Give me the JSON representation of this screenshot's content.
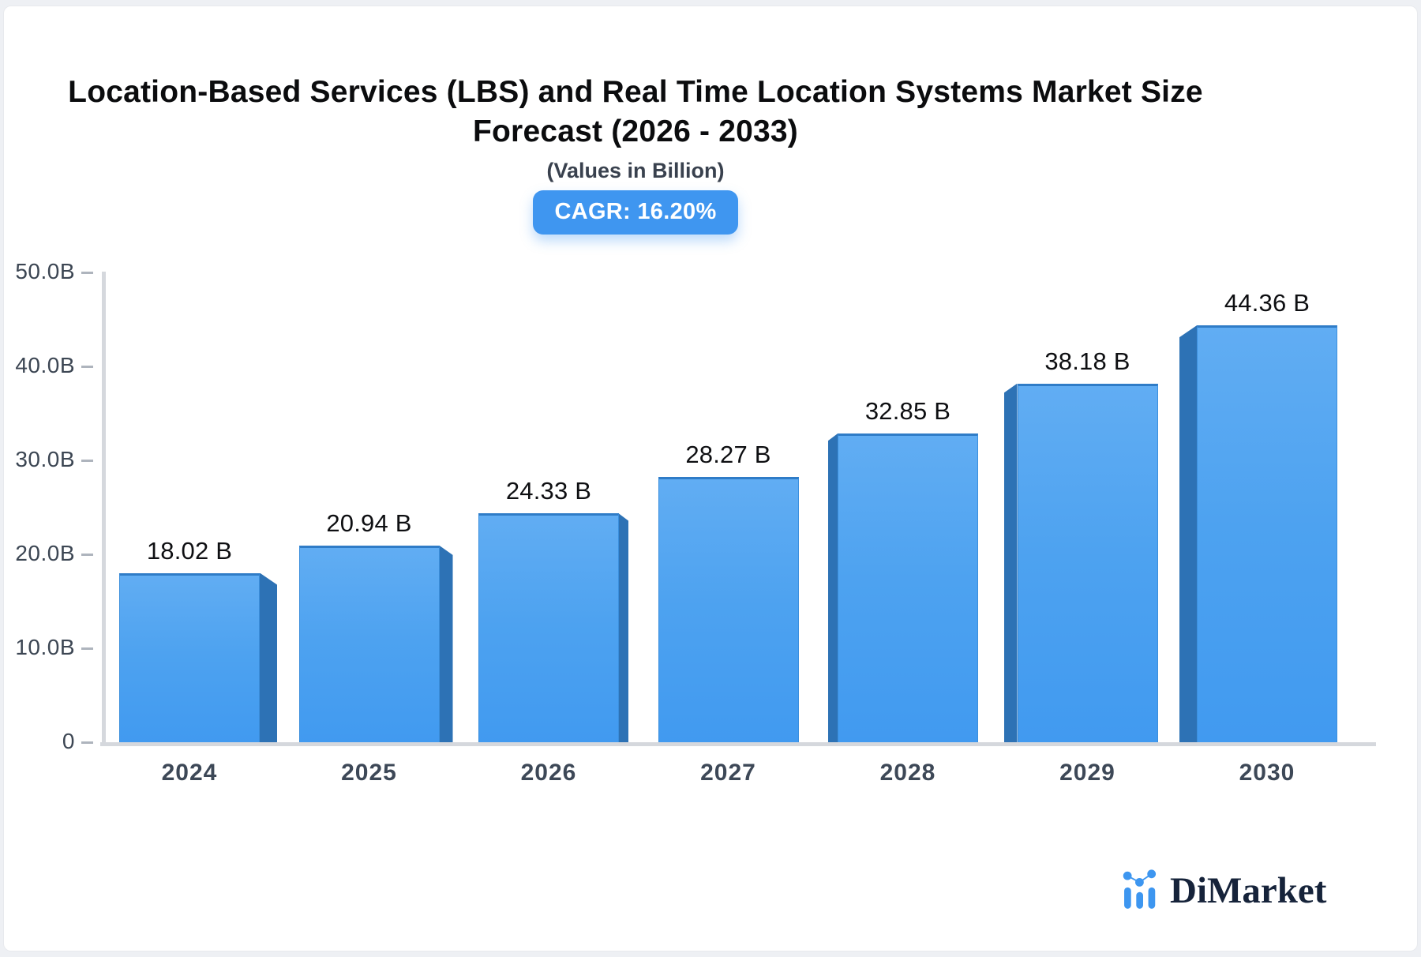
{
  "header": {
    "title_line1": "Location-Based Services (LBS) and Real Time Location Systems Market Size",
    "title_line2": "Forecast (2026 - 2033)",
    "subtitle": "(Values in Billion)",
    "cagr_badge": "CAGR: 16.20%"
  },
  "chart_data": {
    "type": "bar",
    "title": "Location-Based Services (LBS) and Real Time Location Systems Market Size Forecast (2026 - 2033)",
    "subtitle": "(Values in Billion)",
    "cagr_percent": 16.2,
    "categories": [
      "2024",
      "2025",
      "2026",
      "2027",
      "2028",
      "2029",
      "2030"
    ],
    "values": [
      18.02,
      20.94,
      24.33,
      28.27,
      32.85,
      38.18,
      44.36
    ],
    "value_labels": [
      "18.02 B",
      "20.94 B",
      "24.33 B",
      "28.27 B",
      "32.85 B",
      "38.18 B",
      "44.36 B"
    ],
    "xlabel": "",
    "ylabel": "",
    "ylim": [
      0,
      50
    ],
    "y_tick_values": [
      50,
      40,
      30,
      20,
      10,
      0
    ],
    "y_tick_labels": [
      "50.0B",
      "40.0B",
      "30.0B",
      "20.0B",
      "10.0B",
      "0"
    ],
    "grid": false,
    "legend": "none",
    "bar_style": "3d-extruded"
  },
  "branding": {
    "logo_text": "DiMarket",
    "logo_icon": "bar-chart-logo-icon"
  },
  "colors": {
    "bar_top": "#61adf3",
    "bar_bottom": "#419af0",
    "bar_border": "#2f7cc7",
    "bar_side": "#2d72b5",
    "badge_bg": "#3f96f0",
    "axis_line": "#d5d8dd",
    "tick_text": "#3c4653",
    "title_text": "#0b0c0e",
    "logo_navy": "#16233a",
    "logo_blue": "#3d96f0",
    "page_bg": "#eef0f4",
    "card_bg": "#ffffff"
  }
}
